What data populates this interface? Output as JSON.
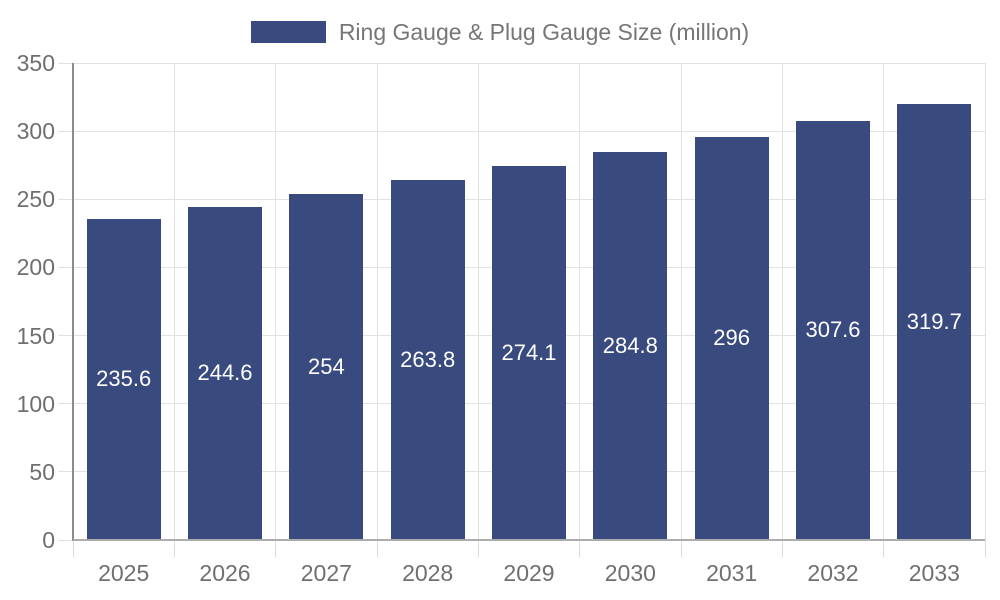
{
  "legend": {
    "label": "Ring Gauge & Plug Gauge Size (million)"
  },
  "colors": {
    "bar": "#394A7F",
    "grid": "#E2E2E2",
    "axis_tick": "#DCDCDC",
    "y_axis_line": "#8C8C8C",
    "x_axis_line": "#ACACAC",
    "axis_label": "#6F6F6F",
    "legend_text": "#767676",
    "value_label": "#FFFFFF",
    "background": "#FFFFFF"
  },
  "chart_data": {
    "type": "bar",
    "title": "Ring Gauge & Plug Gauge Size (million)",
    "series_name": "Ring Gauge & Plug Gauge Size (million)",
    "categories": [
      "2025",
      "2026",
      "2027",
      "2028",
      "2029",
      "2030",
      "2031",
      "2032",
      "2033"
    ],
    "values": [
      235.6,
      244.6,
      254,
      263.8,
      274.1,
      284.8,
      296,
      307.6,
      319.7
    ],
    "value_labels": [
      "235.6",
      "244.6",
      "254",
      "263.8",
      "274.1",
      "284.8",
      "296",
      "307.6",
      "319.7"
    ],
    "xlabel": "",
    "ylabel": "",
    "ylim": [
      0,
      350
    ],
    "yticks": [
      0,
      50,
      100,
      150,
      200,
      250,
      300,
      350
    ],
    "grid": true,
    "legend_position": "top-center",
    "value_labels_position": "center-of-bar"
  }
}
